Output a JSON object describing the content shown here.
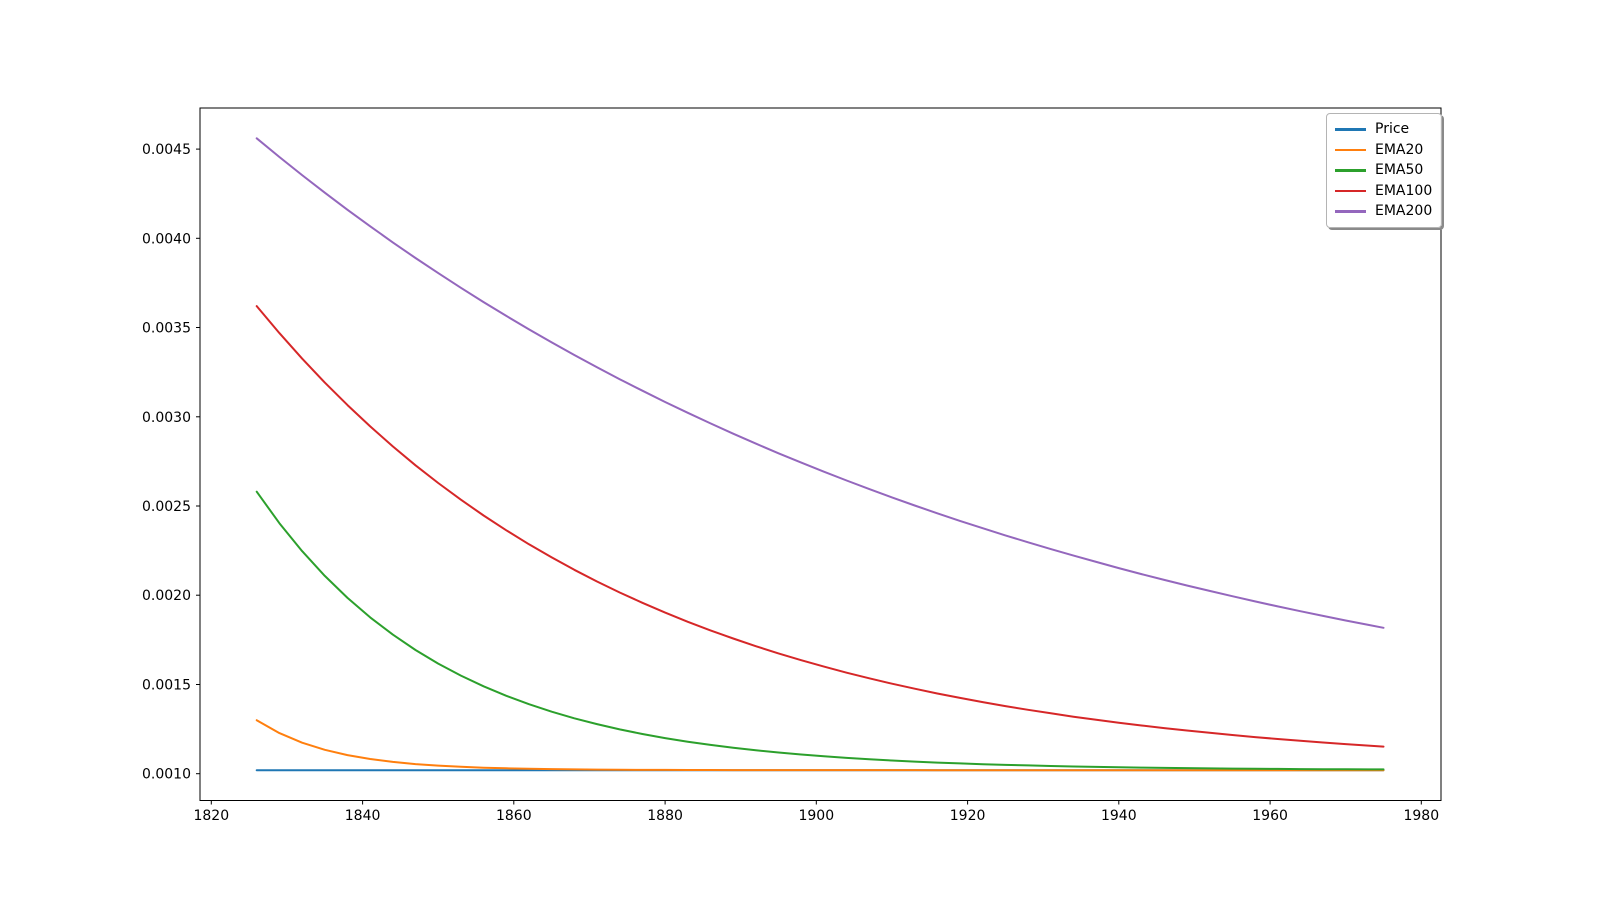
{
  "figure": {
    "background": "#ffffff",
    "axis_color": "#000000"
  },
  "chart_data": {
    "type": "line",
    "title": "",
    "xlabel": "",
    "ylabel": "",
    "grid": false,
    "xlim": [
      1818.5,
      1982.6
    ],
    "ylim": [
      0.00085,
      0.00473
    ],
    "x_ticks": {
      "values": [
        1820,
        1840,
        1860,
        1880,
        1900,
        1920,
        1940,
        1960,
        1980
      ],
      "labels": [
        "1820",
        "1840",
        "1860",
        "1880",
        "1900",
        "1920",
        "1940",
        "1960",
        "1980"
      ]
    },
    "y_ticks": {
      "values": [
        0.001,
        0.0015,
        0.002,
        0.0025,
        0.003,
        0.0035,
        0.004,
        0.0045
      ],
      "labels": [
        "0.0010",
        "0.0015",
        "0.0020",
        "0.0025",
        "0.0030",
        "0.0035",
        "0.0040",
        "0.0045"
      ]
    },
    "legend": {
      "location": "upper right",
      "shadow": true,
      "labels": [
        "Price",
        "EMA20",
        "EMA50",
        "EMA100",
        "EMA200"
      ]
    },
    "x": [
      1826,
      1829,
      1832,
      1835,
      1838,
      1841,
      1844,
      1847,
      1850,
      1853,
      1856,
      1859,
      1862,
      1865,
      1868,
      1871,
      1874,
      1877,
      1880,
      1883,
      1886,
      1889,
      1892,
      1895,
      1898,
      1901,
      1904,
      1907,
      1910,
      1913,
      1916,
      1919,
      1922,
      1925,
      1928,
      1931,
      1934,
      1937,
      1940,
      1943,
      1946,
      1949,
      1952,
      1955,
      1958,
      1961,
      1964,
      1967,
      1970,
      1973,
      1975
    ],
    "series": [
      {
        "name": "Price",
        "color": "#1f77b4",
        "values": [
          0.00102,
          0.00102,
          0.00102,
          0.00102,
          0.00102,
          0.00102,
          0.00102,
          0.00102,
          0.00102,
          0.00102,
          0.00102,
          0.00102,
          0.00102,
          0.00102,
          0.00102,
          0.00102,
          0.00102,
          0.00102,
          0.00102,
          0.00102,
          0.00102,
          0.00102,
          0.00102,
          0.00102,
          0.00102,
          0.00102,
          0.00102,
          0.00102,
          0.00102,
          0.00102,
          0.00102,
          0.00102,
          0.00102,
          0.00102,
          0.00102,
          0.00102,
          0.00102,
          0.00102,
          0.00102,
          0.00102,
          0.00102,
          0.00102,
          0.00102,
          0.00102,
          0.00102,
          0.00102,
          0.00102,
          0.00102,
          0.00102,
          0.00102,
          0.00102
        ]
      },
      {
        "name": "EMA20",
        "color": "#ff7f0e",
        "values": [
          0.0013,
          0.0012274,
          0.0011736,
          0.0011338,
          0.0011043,
          0.0010824,
          0.0010662,
          0.0010542,
          0.0010454,
          0.0010388,
          0.0010339,
          0.0010303,
          0.0010276,
          0.0010257,
          0.0010242,
          0.0010231,
          0.0010223,
          0.0010217,
          0.0010213,
          0.0010209,
          0.0010207,
          0.0010205,
          0.0010204,
          0.0010203,
          0.0010202,
          0.0010202,
          0.0010201,
          0.0010201,
          0.0010201,
          0.0010201,
          0.00102,
          0.00102,
          0.00102,
          0.00102,
          0.00102,
          0.00102,
          0.00102,
          0.00102,
          0.00102,
          0.00102,
          0.00102,
          0.00102,
          0.00102,
          0.00102,
          0.00102,
          0.00102,
          0.00102,
          0.00102,
          0.00102,
          0.00102,
          0.00102
        ]
      },
      {
        "name": "EMA50",
        "color": "#2ca02c",
        "values": [
          0.00258,
          0.0024036,
          0.0022471,
          0.0021083,
          0.0019852,
          0.0018761,
          0.0017793,
          0.0016934,
          0.0016172,
          0.0015497,
          0.0014898,
          0.0014367,
          0.0013895,
          0.0013477,
          0.0013107,
          0.0012778,
          0.0012486,
          0.0012228,
          0.0011998,
          0.0011795,
          0.0011615,
          0.0011455,
          0.0011313,
          0.0011187,
          0.0011075,
          0.0010976,
          0.0010888,
          0.0010811,
          0.0010742,
          0.001068,
          0.0010626,
          0.0010578,
          0.0010535,
          0.0010497,
          0.0010464,
          0.0010434,
          0.0010407,
          0.0010384,
          0.0010363,
          0.0010345,
          0.0010328,
          0.0010314,
          0.0010301,
          0.001029,
          0.0010279,
          0.001027,
          0.0010262,
          0.0010255,
          0.0010249,
          0.0010244,
          0.001024
        ]
      },
      {
        "name": "EMA100",
        "color": "#d62728",
        "values": [
          0.00362,
          0.0034686,
          0.003326,
          0.0031917,
          0.0030652,
          0.0029461,
          0.0028339,
          0.0027283,
          0.0026288,
          0.0025351,
          0.0024469,
          0.0023638,
          0.0022855,
          0.0022118,
          0.0021424,
          0.002077,
          0.0020155,
          0.0019575,
          0.0019029,
          0.0018515,
          0.0018031,
          0.0017575,
          0.0017145,
          0.0016741,
          0.001636,
          0.0016001,
          0.0015663,
          0.0015345,
          0.0015045,
          0.0014763,
          0.0014497,
          0.0014247,
          0.0014011,
          0.0013789,
          0.001358,
          0.0013384,
          0.0013198,
          0.0013024,
          0.0012859,
          0.0012704,
          0.0012558,
          0.0012421,
          0.0012292,
          0.001217,
          0.0012055,
          0.0011947,
          0.0011845,
          0.0011749,
          0.0011659,
          0.0011574,
          0.001152
        ]
      },
      {
        "name": "EMA200",
        "color": "#9467bd",
        "values": [
          0.00456,
          0.0044554,
          0.0043539,
          0.0042553,
          0.0041597,
          0.0040669,
          0.0039769,
          0.0038895,
          0.0038047,
          0.0037224,
          0.0036425,
          0.003565,
          0.0034898,
          0.0034168,
          0.003346,
          0.0032772,
          0.0032105,
          0.0031458,
          0.0030829,
          0.003022,
          0.0029628,
          0.0029054,
          0.0028497,
          0.0027956,
          0.0027431,
          0.0026922,
          0.0026428,
          0.0025948,
          0.0025483,
          0.0025031,
          0.0024593,
          0.0024167,
          0.0023755,
          0.0023354,
          0.0022965,
          0.0022588,
          0.0022222,
          0.0021867,
          0.0021522,
          0.0021187,
          0.0020862,
          0.0020547,
          0.0020241,
          0.0019945,
          0.0019657,
          0.0019377,
          0.0019106,
          0.0018843,
          0.0018587,
          0.0018339,
          0.0018178
        ]
      }
    ]
  }
}
